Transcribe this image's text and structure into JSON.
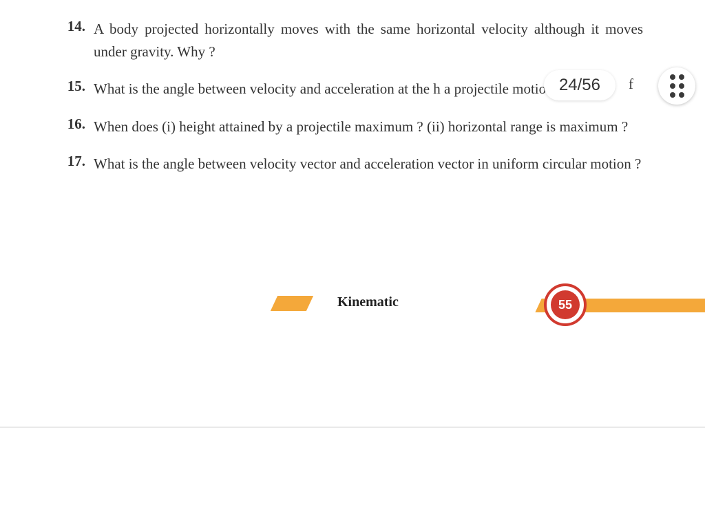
{
  "questions": [
    {
      "num": "14.",
      "text": "A body projected horizontally moves with the same horizontal velocity although it moves under gravity. Why ?"
    },
    {
      "num": "15.",
      "text": "What is the angle between velocity and acceleration at the h                        a projectile motion ?"
    },
    {
      "num": "16.",
      "text": "When does (i) height attained by a projectile maximum ? (ii) horizontal range is maximum ?"
    },
    {
      "num": "17.",
      "text": "What is the angle between velocity vector and acceleration vector in uniform circular motion ?"
    }
  ],
  "page_counter": "24/56",
  "fragment_f": "f",
  "section_title": "Kinematic",
  "page_number": "55",
  "colors": {
    "accent_orange": "#f4a83a",
    "accent_red": "#d13a2f",
    "text": "#333333",
    "background": "#ffffff",
    "divider": "#e9e9e9"
  },
  "typography": {
    "body_fontsize": 21,
    "counter_fontsize": 24,
    "section_title_fontsize": 20,
    "badge_fontsize": 18
  }
}
